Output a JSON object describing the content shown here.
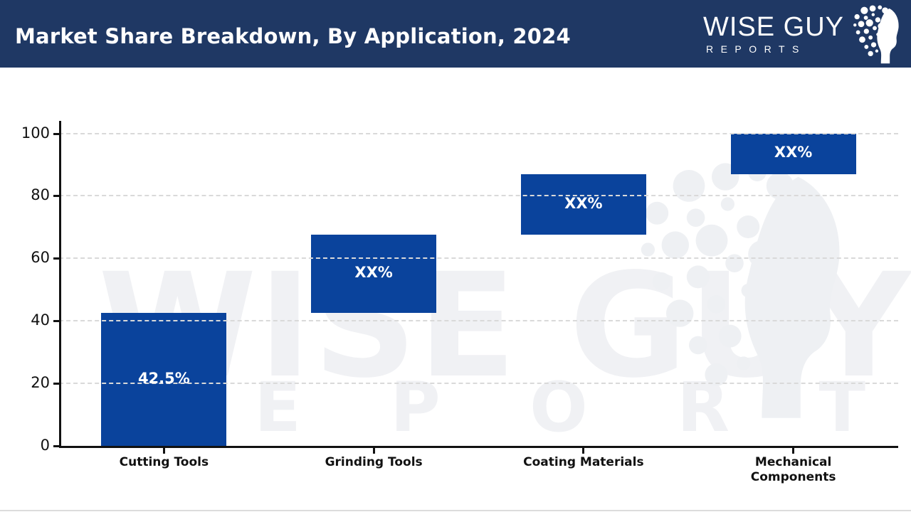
{
  "header": {
    "title": "Market Share Breakdown, By Application, 2024",
    "logo": {
      "line1": "WISE GUY",
      "line2": "REPORTS"
    }
  },
  "watermark": {
    "line1": "WISE GUY",
    "line2": "R E P O R T S"
  },
  "colors": {
    "header_bg": "#1F3864",
    "bar": "#0A439C",
    "grid": "#d9d9d9",
    "axis": "#111111",
    "bar_label": "#ffffff",
    "watermark_text": "#f0f1f4"
  },
  "chart_data": {
    "type": "bar",
    "variant": "waterfall",
    "title": "Market Share Breakdown, By Application, 2024",
    "categories": [
      "Cutting Tools",
      "Grinding Tools",
      "Coating Materials",
      "Mechanical\nComponents"
    ],
    "segments": [
      {
        "category": "Cutting Tools",
        "start": 0,
        "end": 42.5,
        "label": "42.5%"
      },
      {
        "category": "Grinding Tools",
        "start": 42.5,
        "end": 67.5,
        "label": "XX%"
      },
      {
        "category": "Coating Materials",
        "start": 67.5,
        "end": 87,
        "label": "XX%"
      },
      {
        "category": "Mechanical\nComponents",
        "start": 87,
        "end": 100,
        "label": "XX%"
      }
    ],
    "y_ticks": [
      0,
      20,
      40,
      60,
      80,
      100
    ],
    "ylim": [
      0,
      104
    ],
    "xlabel": "",
    "ylabel": "",
    "grid": "horizontal-dashed",
    "legend": false
  }
}
